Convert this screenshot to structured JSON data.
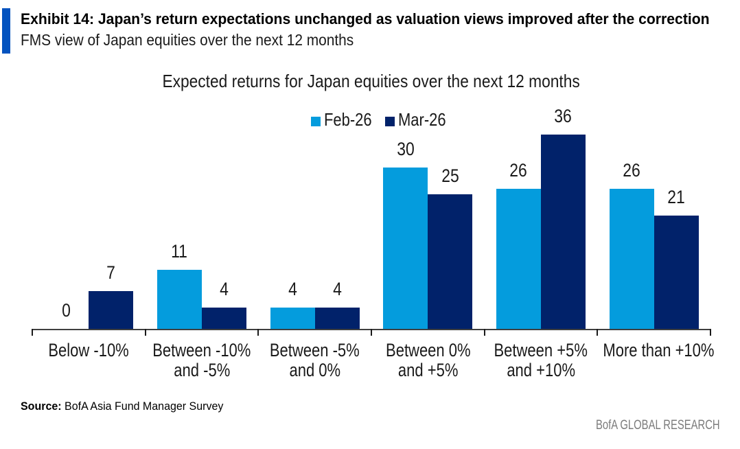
{
  "header": {
    "exhibit_title": "Exhibit 14: Japan’s return expectations unchanged as valuation views improved after the correction",
    "subtitle": "FMS view of Japan equities over the next 12 months"
  },
  "footer": {
    "source_label": "Source:",
    "source_text": "BofA Asia Fund Manager Survey",
    "brand": "BofA GLOBAL RESEARCH"
  },
  "colors": {
    "accent": "#0353BF",
    "feb_series": "#049CDD",
    "mar_series": "#01226A",
    "axis": "#3F3F3F",
    "tick": "#1A1A1A",
    "brand_gray": "#7B7B7B"
  },
  "chart_data": {
    "type": "bar",
    "title": "Expected returns for Japan equities over the next 12 months",
    "categories": [
      "Below -10%",
      "Between -10% and -5%",
      "Between -5% and 0%",
      "Between 0% and +5%",
      "Between +5% and +10%",
      "More than +10%"
    ],
    "categories_display": [
      [
        "Below -10%"
      ],
      [
        "Between -10%",
        "and -5%"
      ],
      [
        "Between -5%",
        "and 0%"
      ],
      [
        "Between 0%",
        "and +5%"
      ],
      [
        "Between +5%",
        "and +10%"
      ],
      [
        "More than +10%"
      ]
    ],
    "series": [
      {
        "name": "Feb-26",
        "color": "#049CDD",
        "values": [
          0,
          11,
          4,
          30,
          26,
          26
        ]
      },
      {
        "name": "Mar-26",
        "color": "#01226A",
        "values": [
          7,
          4,
          4,
          25,
          36,
          21
        ]
      }
    ],
    "xlabel": "",
    "ylabel": "",
    "ylim": [
      0,
      40
    ],
    "grid": false,
    "legend_position": "top-center",
    "value_labels": true
  }
}
